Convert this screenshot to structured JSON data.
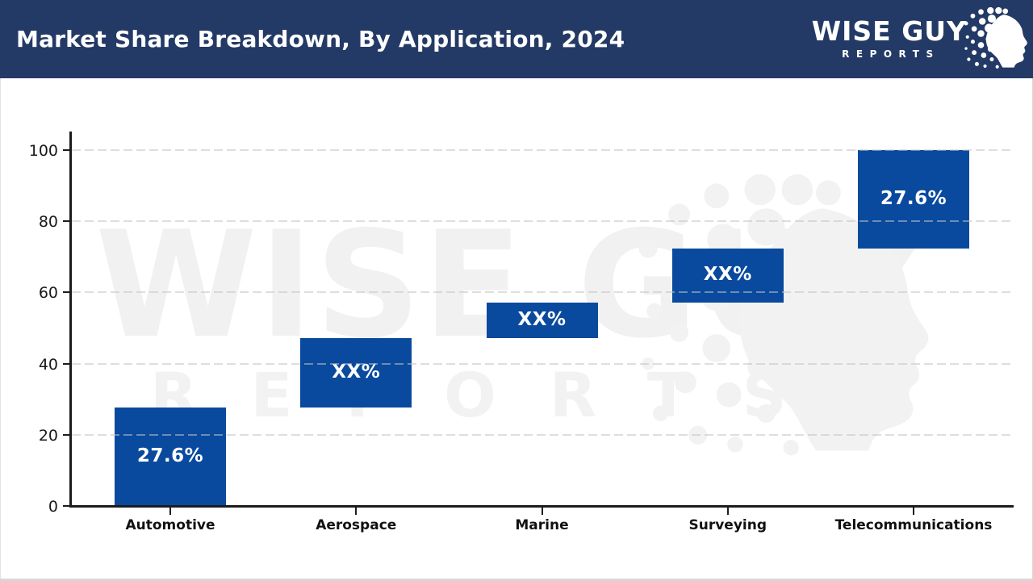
{
  "header": {
    "title": "Market Share Breakdown, By Application, 2024",
    "brand": {
      "name": "WISE GUY",
      "subtitle": "REPORTS"
    }
  },
  "watermark": {
    "line1": "WISE GUY",
    "line2": "REPORTS"
  },
  "chart_data": {
    "type": "bar",
    "variant": "waterfall",
    "title": "Market Share Breakdown, By Application, 2024",
    "categories": [
      "Automotive",
      "Aerospace",
      "Marine",
      "Surveying",
      "Telecommunications"
    ],
    "segments": [
      {
        "category": "Automotive",
        "start": 0,
        "end": 27.6,
        "label": "27.6%"
      },
      {
        "category": "Aerospace",
        "start": 27.6,
        "end": 47.2,
        "label": "XX%"
      },
      {
        "category": "Marine",
        "start": 47.2,
        "end": 57.2,
        "label": "XX%"
      },
      {
        "category": "Surveying",
        "start": 57.2,
        "end": 72.4,
        "label": "XX%"
      },
      {
        "category": "Telecommunications",
        "start": 72.4,
        "end": 100,
        "label": "27.6%"
      }
    ],
    "xlabel": "",
    "ylabel": "",
    "ylim": [
      0,
      100
    ],
    "yticks": [
      0,
      20,
      40,
      60,
      80,
      100
    ],
    "grid": "horizontal-dashed-over-bars",
    "legend": "none",
    "bar_color": "#094a9e",
    "bar_label_color": "#ffffff",
    "axis_color": "#1c1c1c",
    "grid_color": "#dedede"
  },
  "colors": {
    "header_bg": "#243a66",
    "header_text": "#ffffff",
    "page_bg": "#ffffff",
    "watermark": "#f1f1f1",
    "bar": "#094a9e"
  }
}
